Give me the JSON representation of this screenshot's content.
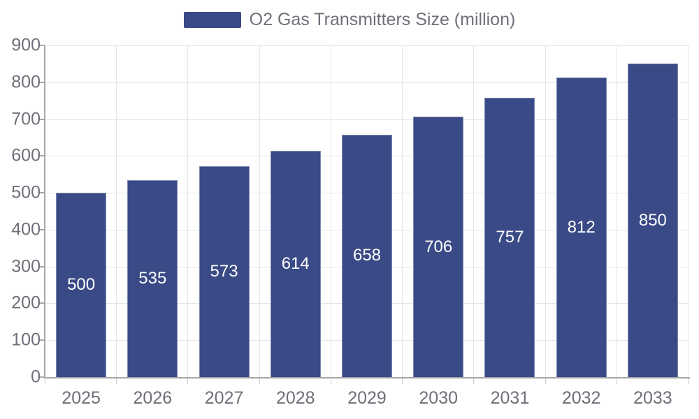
{
  "chart_data": {
    "type": "bar",
    "title": "",
    "legend": "O2 Gas Transmitters Size (million)",
    "categories": [
      "2025",
      "2026",
      "2027",
      "2028",
      "2029",
      "2030",
      "2031",
      "2032",
      "2033"
    ],
    "values": [
      500,
      535,
      573,
      614,
      658,
      706,
      757,
      812,
      850
    ],
    "xlabel": "",
    "ylabel": "",
    "ylim": [
      0,
      900
    ],
    "ytick_step": 100,
    "grid": true,
    "legend_position": "top-center",
    "bar_label_position": "inside-center",
    "colors": {
      "bar": "#3A4A86",
      "bar_label": "#ffffff",
      "axis_line": "#a6a6a6",
      "y_tick": "#a6a6a6",
      "x_tick": "#cccccc",
      "tick_label": "#6E7079",
      "grid_line": "#E4E5EB",
      "legend_text": "#6E7079",
      "background": "#ffffff"
    }
  }
}
